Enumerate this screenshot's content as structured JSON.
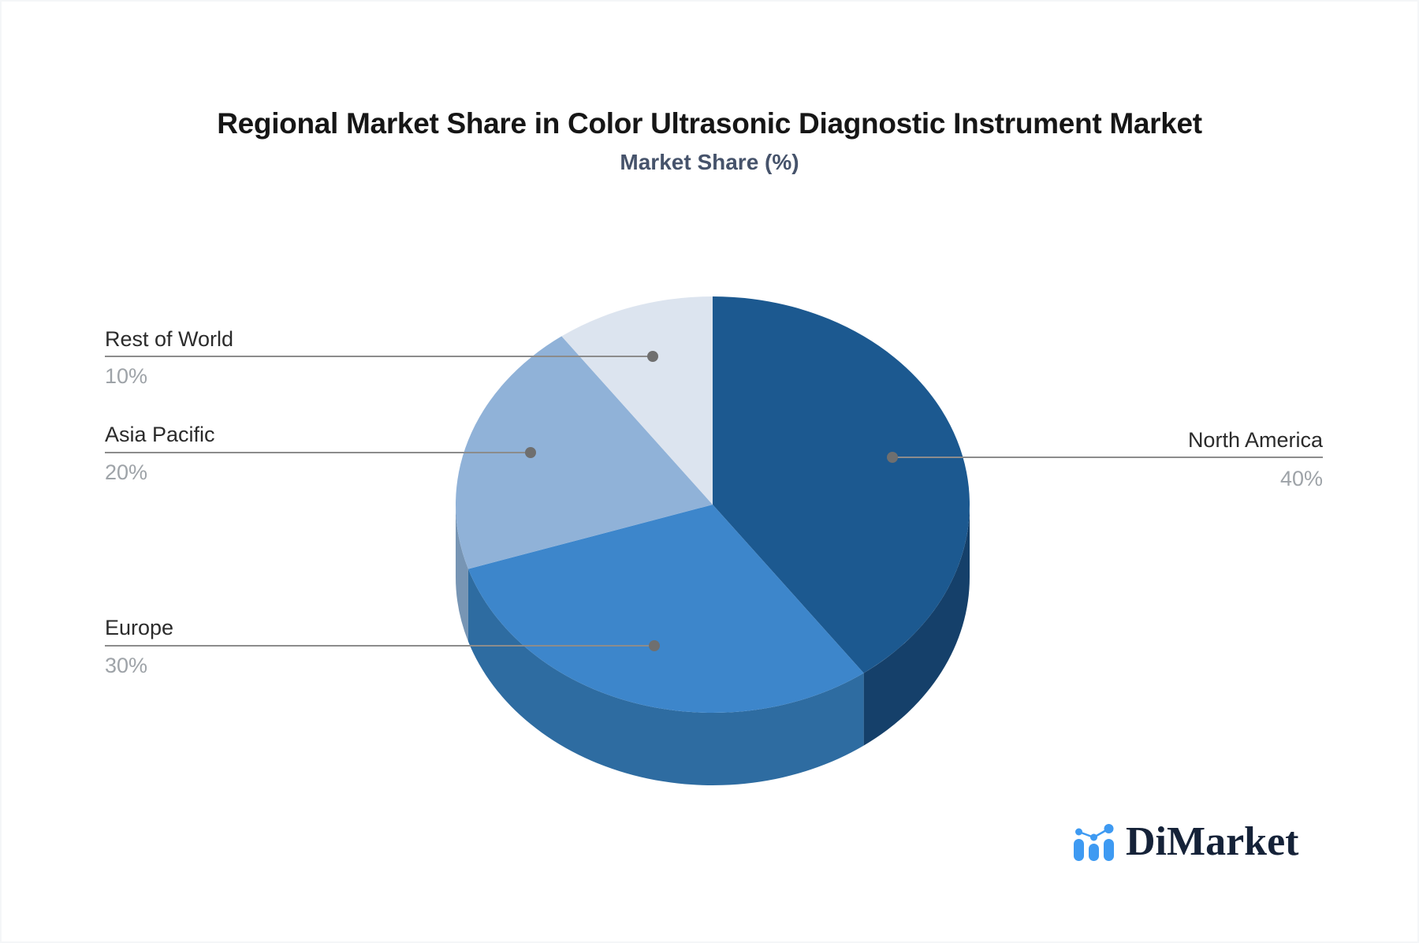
{
  "header": {
    "title": "Regional Market Share in Color Ultrasonic Diagnostic Instrument Market",
    "subtitle": "Market Share (%)"
  },
  "chart_data": {
    "type": "pie",
    "title": "Regional Market Share in Color Ultrasonic Diagnostic Instrument Market",
    "subtitle": "Market Share (%)",
    "unit": "%",
    "effect": "3d",
    "start_angle_deg": 0,
    "direction": "clockwise",
    "legend": "none",
    "label_style": "callout-leader-lines",
    "slices": [
      {
        "label": "North America",
        "value": 40,
        "value_text": "40%",
        "color": "#1C5990",
        "side_color": "#15406A"
      },
      {
        "label": "Europe",
        "value": 30,
        "value_text": "30%",
        "color": "#3D86CB",
        "side_color": "#2E6CA1"
      },
      {
        "label": "Asia Pacific",
        "value": 20,
        "value_text": "20%",
        "color": "#90B2D8",
        "side_color": "#7795B4"
      },
      {
        "label": "Rest of World",
        "value": 10,
        "value_text": "10%",
        "color": "#DCE4EF",
        "side_color": "#B9C5D7"
      }
    ],
    "leader": {
      "line_color": "#8C8C8C",
      "dot_color": "#6F6F6F"
    }
  },
  "colors": {
    "title": "#161616",
    "subtitle": "#46536B",
    "label": "#2B2B2B",
    "value": "#9EA3A8",
    "accent": "#3E9AF2",
    "logo_text": "#152238"
  },
  "logo": {
    "text": "DiMarket",
    "icon": "bar-line-chart-icon"
  }
}
